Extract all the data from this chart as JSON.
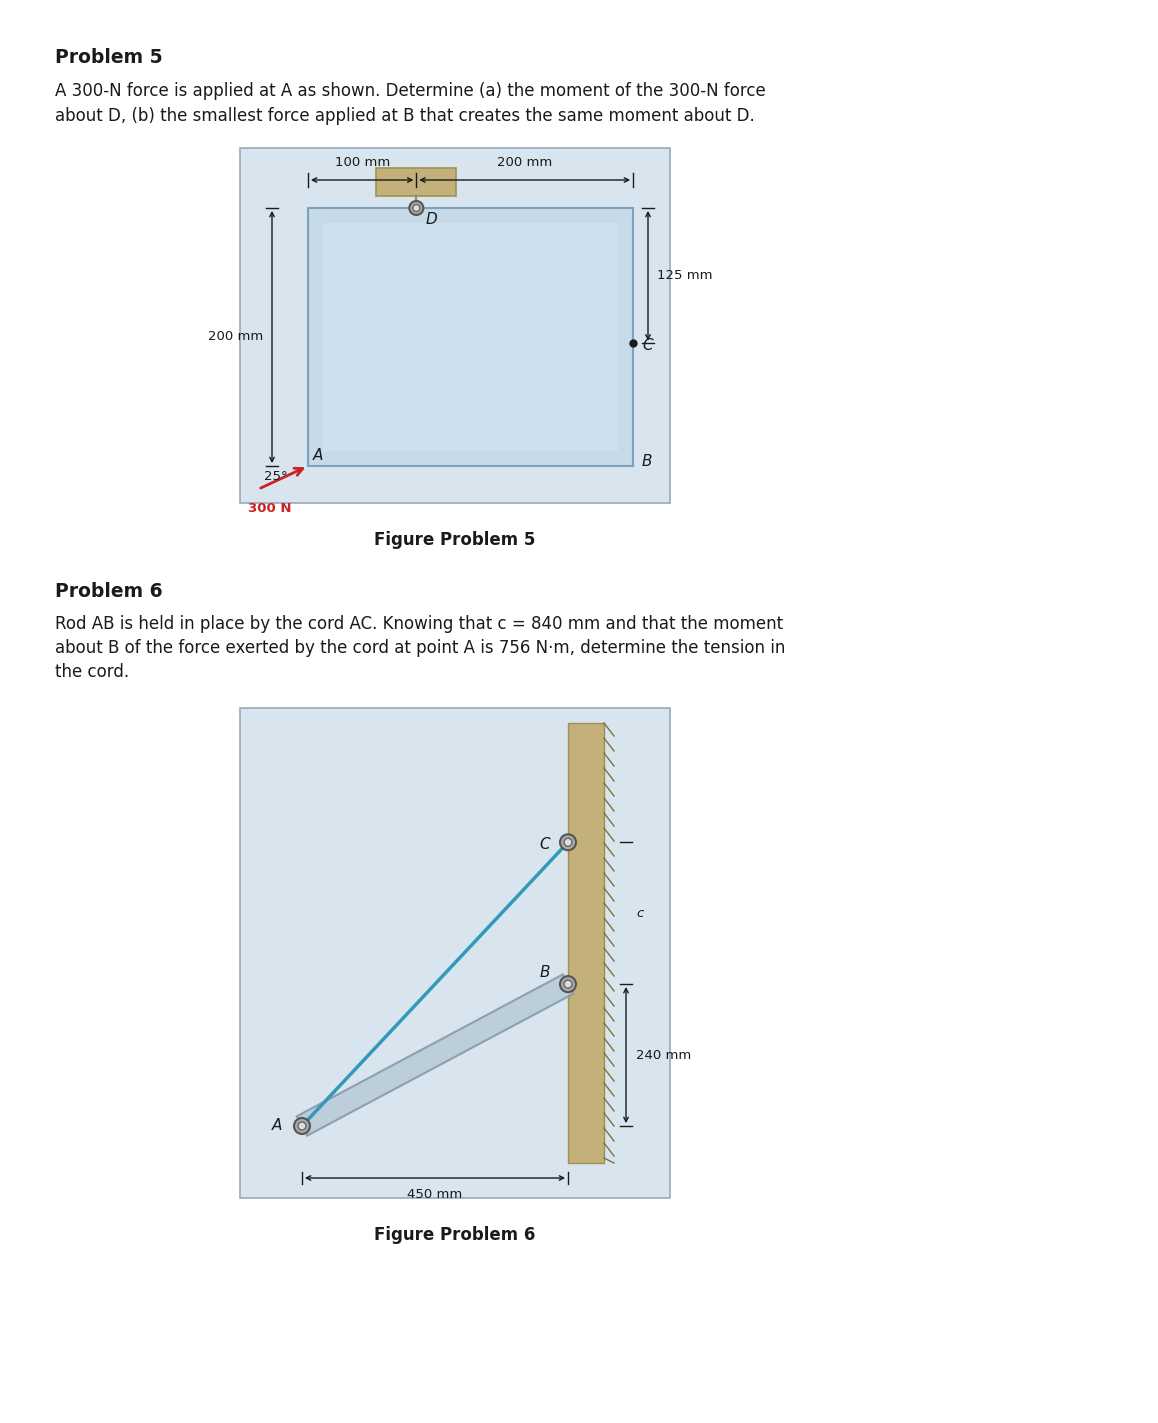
{
  "prob5_title": "Problem 5",
  "prob5_line1": "A 300-N force is applied at A as shown. Determine (a) the moment of the 300-N force",
  "prob5_line2": "about D, (b) the smallest force applied at B that creates the same moment about D.",
  "prob5_caption": "Figure Problem 5",
  "prob6_title": "Problem 6",
  "prob6_line1": "Rod AB is held in place by the cord AC. Knowing that c = 840 mm and that the moment",
  "prob6_line2": "about B of the force exerted by the cord at point A is 756 N·m, determine the tension in",
  "prob6_line3": "the cord.",
  "prob6_caption": "Figure Problem 6",
  "panel_bg": "#d8e5ee",
  "glass_face": "#c5d9e8",
  "glass_inner": "#d5e5f5",
  "plate_tan": "#c4b07a",
  "plate_tan_dark": "#a09050",
  "force_red": "#cc2222",
  "cord_blue": "#3399bb",
  "rod_face": "#b8ccd8",
  "rod_edge": "#8899aa",
  "wall_tan": "#c4b07a",
  "dim_color": "#1a1a1a",
  "text_color": "#1a1a1a"
}
